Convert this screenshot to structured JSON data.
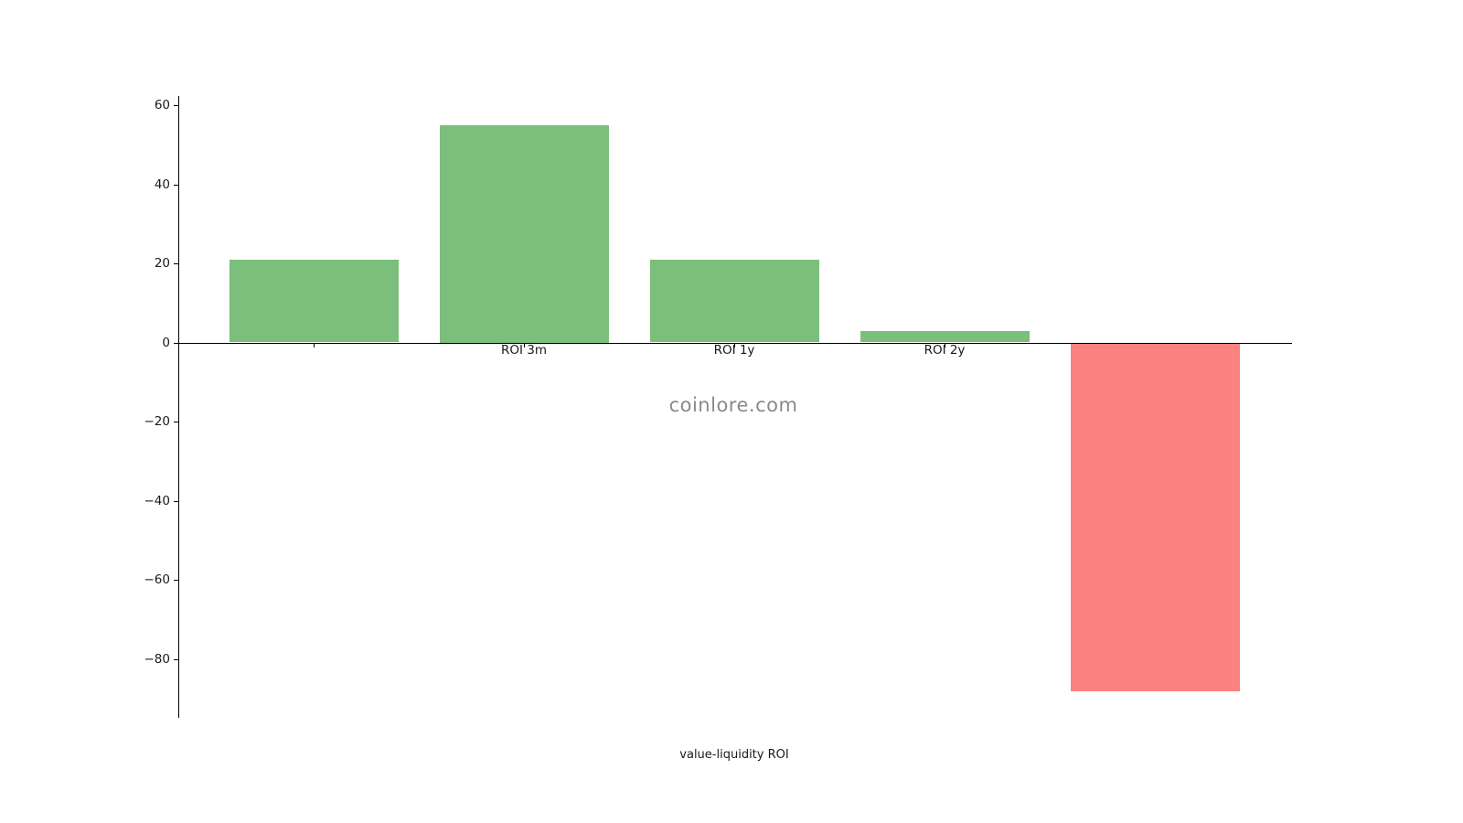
{
  "page": {
    "background_color": "#ffffff"
  },
  "chart_data": {
    "type": "bar",
    "title": "",
    "categories": [
      "",
      "ROI 3m",
      "ROI 1y",
      "ROI 2y",
      ""
    ],
    "values": [
      21,
      55,
      21,
      3,
      -88
    ],
    "bar_colors": [
      "#7cbe7c",
      "#7cbe7c",
      "#7cbe7c",
      "#7cbe7c",
      "#fc8181"
    ],
    "positive_color": "#7cbe7c",
    "negative_color": "#fc8181",
    "xlabel": "value-liquidity ROI",
    "ylabel": "",
    "yticks": [
      60,
      40,
      20,
      0,
      -20,
      -40,
      -60,
      -80
    ],
    "ylim": [
      -95,
      62
    ],
    "x_tick_marks_shown": [
      true,
      true,
      true,
      true,
      false
    ],
    "grid": false,
    "legend_position": "none",
    "watermark": "coinlore.com",
    "axis_color": "#000000",
    "tick_text_color": "#1a1a1a",
    "watermark_color": "#8a8a8a"
  }
}
